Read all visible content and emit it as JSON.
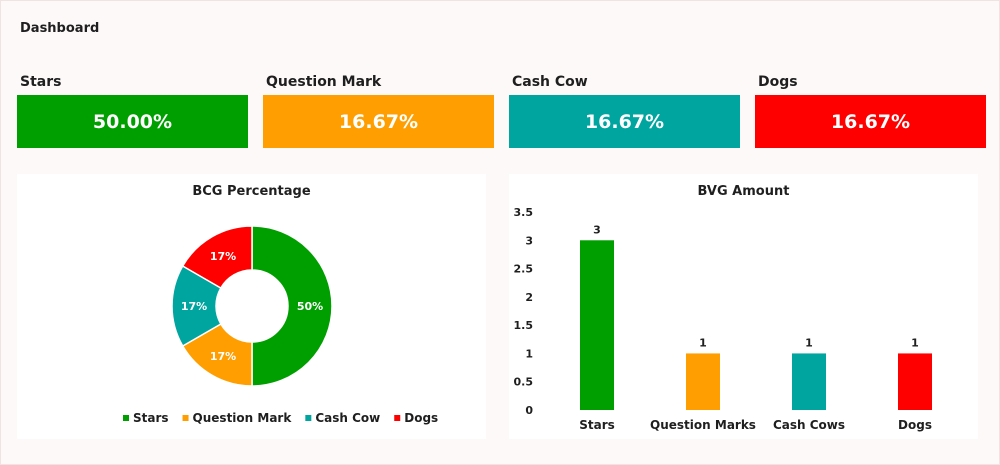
{
  "dashboard": {
    "title": "Dashboard"
  },
  "kpis": [
    {
      "label": "Stars",
      "value": "50.00%",
      "color": "#009f00"
    },
    {
      "label": "Question Mark",
      "value": "16.67%",
      "color": "#ff9e00"
    },
    {
      "label": "Cash Cow",
      "value": "16.67%",
      "color": "#00a5a0"
    },
    {
      "label": "Dogs",
      "value": "16.67%",
      "color": "#ff0000"
    }
  ],
  "chart_data": [
    {
      "type": "pie",
      "title": "BCG Percentage",
      "donut": true,
      "categories": [
        "Stars",
        "Question Mark",
        "Cash Cow",
        "Dogs"
      ],
      "values": [
        50,
        16.67,
        16.67,
        16.67
      ],
      "data_labels": [
        "50%",
        "17%",
        "17%",
        "17%"
      ],
      "colors": [
        "#009f00",
        "#ff9e00",
        "#00a5a0",
        "#ff0000"
      ],
      "legend": "bottom"
    },
    {
      "type": "bar",
      "title": "BVG Amount",
      "categories": [
        "Stars",
        "Question Marks",
        "Cash Cows",
        "Dogs"
      ],
      "values": [
        3,
        1,
        1,
        1
      ],
      "colors": [
        "#009f00",
        "#ff9e00",
        "#00a5a0",
        "#ff0000"
      ],
      "yticks": [
        "0",
        "0.5",
        "1",
        "1.5",
        "2",
        "2.5",
        "3",
        "3.5"
      ],
      "ylim": [
        0,
        3.5
      ],
      "grid": false,
      "data_labels": true
    }
  ]
}
